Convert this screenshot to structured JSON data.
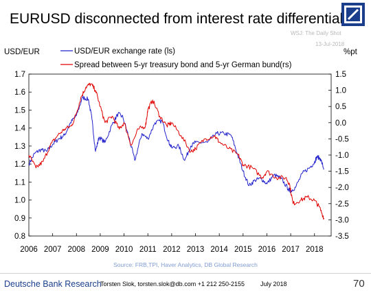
{
  "title": "EURUSD disconnected from interest rate differentials",
  "watermark": {
    "line1": "WSJ: The Daily Shot",
    "line2": "13-Jul-2018"
  },
  "source": "Source: FRB,TPI, Haver Analytics, DB Global Research",
  "footer": {
    "brand": "Deutsche Bank Research",
    "author": "Torsten Slok, torsten.slok@db.com  +1 212 250-2155",
    "date": "July 2018",
    "page": "70"
  },
  "colors": {
    "usd": "#2222cc",
    "spread": "#e00000",
    "brand": "#1a3e8c"
  },
  "chart_data": {
    "type": "line",
    "ylabel_left": "USD/EUR",
    "ylabel_right": "%pt",
    "ylim_left": [
      0.8,
      1.7
    ],
    "ylim_right": [
      -3.5,
      1.5
    ],
    "xlim": [
      2006,
      2018.7
    ],
    "x_ticks": [
      "2006",
      "2007",
      "2008",
      "2009",
      "2010",
      "2011",
      "2012",
      "2013",
      "2014",
      "2015",
      "2016",
      "2017",
      "2018"
    ],
    "y_ticks_left": [
      "1.7",
      "1.6",
      "1.5",
      "1.4",
      "1.3",
      "1.2",
      "1.1",
      "1.0",
      "0.9",
      "0.8"
    ],
    "y_ticks_right": [
      "1.5",
      "1.0",
      "0.5",
      "0.0",
      "-0.5",
      "-1.0",
      "-1.5",
      "-2.0",
      "-2.5",
      "-3.0",
      "-3.5"
    ],
    "legend_position": "top-left",
    "series": [
      {
        "name": "USD/EUR exchange rate (ls)",
        "axis": "left",
        "x": [
          2006.0,
          2006.25,
          2006.5,
          2006.75,
          2007.0,
          2007.25,
          2007.5,
          2007.75,
          2008.0,
          2008.25,
          2008.5,
          2008.65,
          2008.8,
          2008.95,
          2009.2,
          2009.5,
          2009.75,
          2009.95,
          2010.2,
          2010.45,
          2010.75,
          2011.0,
          2011.3,
          2011.6,
          2011.85,
          2012.0,
          2012.3,
          2012.55,
          2012.8,
          2013.0,
          2013.5,
          2013.9,
          2014.2,
          2014.5,
          2014.75,
          2015.0,
          2015.25,
          2015.5,
          2015.75,
          2016.0,
          2016.3,
          2016.6,
          2016.9,
          2017.0,
          2017.2,
          2017.5,
          2017.8,
          2018.0,
          2018.1,
          2018.25,
          2018.4
        ],
        "y": [
          1.2,
          1.26,
          1.28,
          1.27,
          1.31,
          1.34,
          1.36,
          1.43,
          1.47,
          1.57,
          1.56,
          1.45,
          1.27,
          1.35,
          1.32,
          1.42,
          1.48,
          1.46,
          1.35,
          1.22,
          1.37,
          1.34,
          1.43,
          1.44,
          1.33,
          1.29,
          1.3,
          1.22,
          1.3,
          1.32,
          1.32,
          1.37,
          1.37,
          1.36,
          1.26,
          1.16,
          1.08,
          1.11,
          1.12,
          1.09,
          1.14,
          1.12,
          1.06,
          1.05,
          1.07,
          1.15,
          1.18,
          1.21,
          1.24,
          1.23,
          1.17
        ]
      },
      {
        "name": "Spread between 5-yr treasury bond and 5-yr German bund(rs)",
        "axis": "right",
        "x": [
          2006.0,
          2006.3,
          2006.6,
          2006.9,
          2007.2,
          2007.5,
          2007.8,
          2008.0,
          2008.2,
          2008.4,
          2008.6,
          2008.8,
          2009.0,
          2009.2,
          2009.5,
          2009.8,
          2010.0,
          2010.3,
          2010.6,
          2010.9,
          2011.0,
          2011.2,
          2011.5,
          2011.8,
          2012.0,
          2012.4,
          2012.8,
          2013.0,
          2013.4,
          2013.8,
          2014.0,
          2014.4,
          2014.8,
          2015.0,
          2015.4,
          2015.8,
          2016.0,
          2016.4,
          2016.8,
          2016.95,
          2017.1,
          2017.4,
          2017.7,
          2018.0,
          2018.2,
          2018.4
        ],
        "y": [
          -1.0,
          -1.4,
          -1.2,
          -0.7,
          -0.4,
          -0.2,
          -0.1,
          0.3,
          0.8,
          1.1,
          1.2,
          1.0,
          0.5,
          0.0,
          0.2,
          -0.2,
          0.0,
          -0.7,
          -0.2,
          -0.1,
          0.4,
          0.7,
          0.2,
          -0.1,
          0.0,
          -0.4,
          -0.9,
          -0.8,
          -0.5,
          -0.4,
          -0.6,
          -0.8,
          -1.0,
          -1.3,
          -1.4,
          -1.7,
          -1.5,
          -1.7,
          -1.7,
          -1.9,
          -2.5,
          -2.4,
          -2.3,
          -2.4,
          -2.6,
          -2.95
        ]
      }
    ]
  }
}
